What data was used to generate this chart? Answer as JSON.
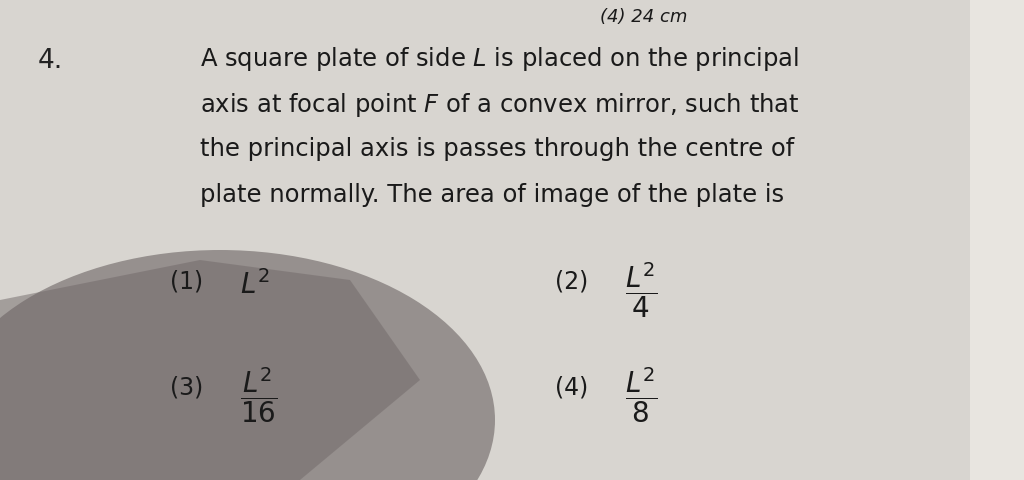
{
  "bg_color": "#c8c8c8",
  "page_color": "#d8d5d0",
  "right_strip_color": "#e8e5e0",
  "shadow_color": "#888080",
  "figsize": [
    10.24,
    4.8
  ],
  "dpi": 100,
  "top_partial_text": "(4) 24 cm",
  "question_number": "4.",
  "lines": [
    "A square plate of side $L$ is placed on the principal",
    "axis at focal point $F$ of a convex mirror, such that",
    "the principal axis is passes through the centre of",
    "plate normally. The area of image of the plate is"
  ],
  "opt1_label": "(1)",
  "opt1_expr": "$L^2$",
  "opt2_label": "(2)",
  "opt2_expr": "$\\dfrac{L^2}{4}$",
  "opt3_label": "(3)",
  "opt3_expr": "$\\dfrac{L^2}{16}$",
  "opt4_label": "(4)",
  "opt4_expr": "$\\dfrac{L^2}{8}$",
  "text_color": "#1a1a1a",
  "qnum_color": "#222222"
}
